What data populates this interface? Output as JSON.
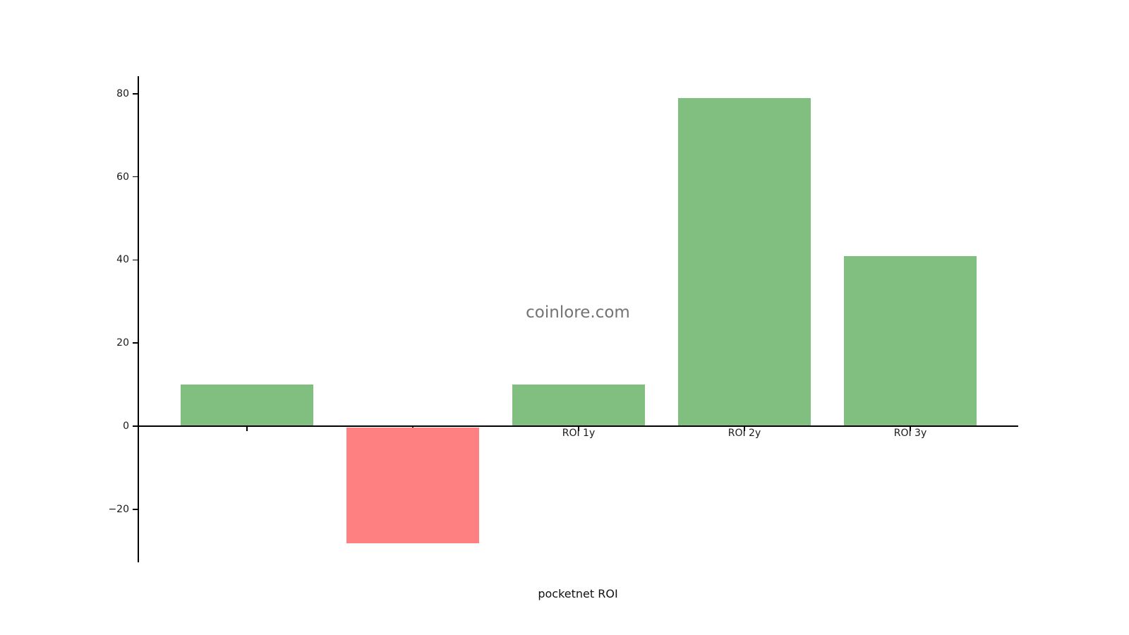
{
  "watermark": {
    "text": "coinlore.com",
    "color": "#737373"
  },
  "chart_data": {
    "type": "bar",
    "title": "",
    "xlabel": "pocketnet ROI",
    "ylabel": "",
    "categories": [
      "",
      "",
      "ROI 1y",
      "ROI 2y",
      "ROI 3y"
    ],
    "values": [
      10,
      -28,
      10,
      79,
      41
    ],
    "bar_colors": [
      "#80bf80",
      "#ff8080",
      "#80bf80",
      "#80bf80",
      "#80bf80"
    ],
    "positive_color": "#80bf80",
    "negative_color": "#ff8080",
    "yticks": [
      80,
      60,
      40,
      20,
      0,
      -20
    ],
    "ylim": [
      -33,
      84
    ],
    "grid": false,
    "legend": null,
    "axis_color": "#000000"
  }
}
